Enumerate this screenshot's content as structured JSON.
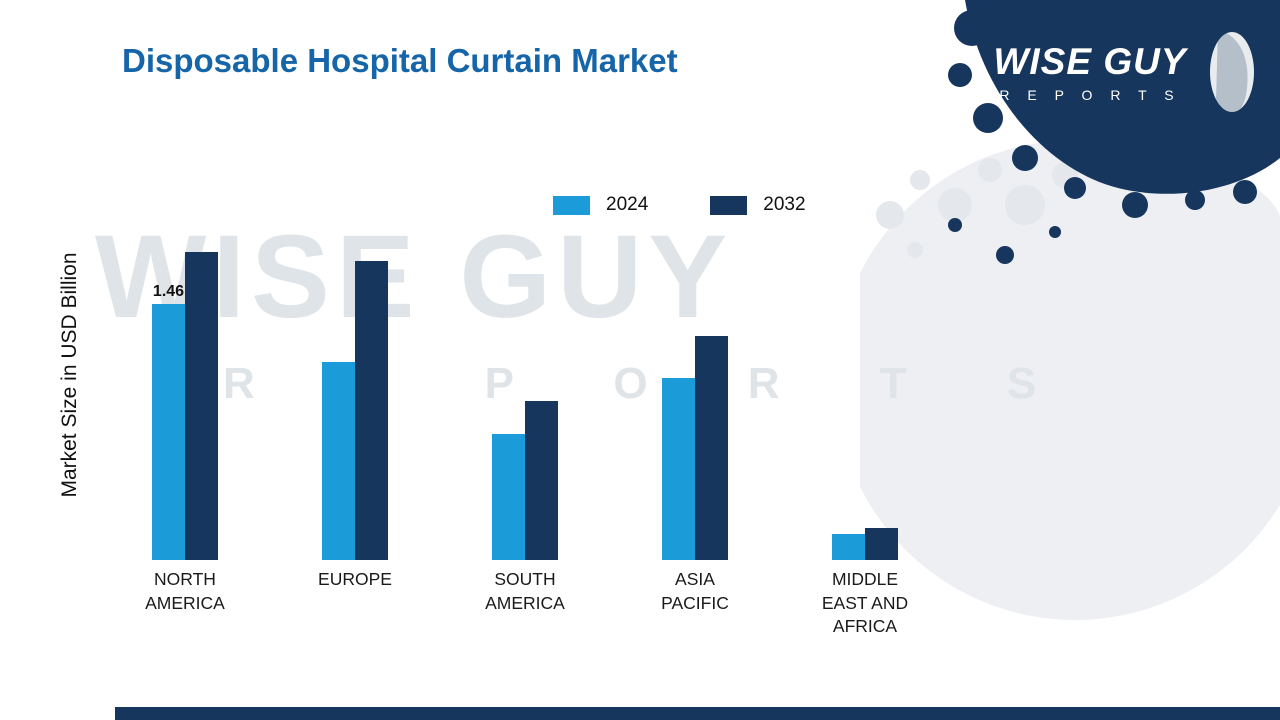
{
  "header": {
    "title": "Disposable Hospital Curtain Market"
  },
  "logo": {
    "line1": "WISE GUY",
    "line2": "R E P O R T S"
  },
  "watermark": {
    "line1": "WISE GUY",
    "line2": "R E P O R T S"
  },
  "chart_data": {
    "type": "bar",
    "title": "Disposable Hospital Curtain Market",
    "ylabel": "Market Size in USD Billion",
    "categories": [
      "NORTH AMERICA",
      "EUROPE",
      "SOUTH AMERICA",
      "ASIA PACIFIC",
      "MIDDLE EAST AND AFRICA"
    ],
    "series": [
      {
        "name": "2024",
        "color": "#1b9cd8",
        "values": [
          1.46,
          1.13,
          0.72,
          1.04,
          0.15
        ]
      },
      {
        "name": "2032",
        "color": "#17365d",
        "values": [
          1.76,
          1.71,
          0.91,
          1.28,
          0.18
        ]
      }
    ],
    "annotations": [
      {
        "series": 0,
        "category": 0,
        "text": "1.46"
      }
    ],
    "ylim": [
      0,
      2
    ],
    "grid": false,
    "legend_position": "top"
  },
  "colors": {
    "title": "#1565a8",
    "bar_2024": "#1b9cd8",
    "bar_2032": "#17365d",
    "footer": "#17365d",
    "watermark": "#dfe4e9",
    "head_silhouette": "#edeff2",
    "logo_background": "#17365d"
  }
}
